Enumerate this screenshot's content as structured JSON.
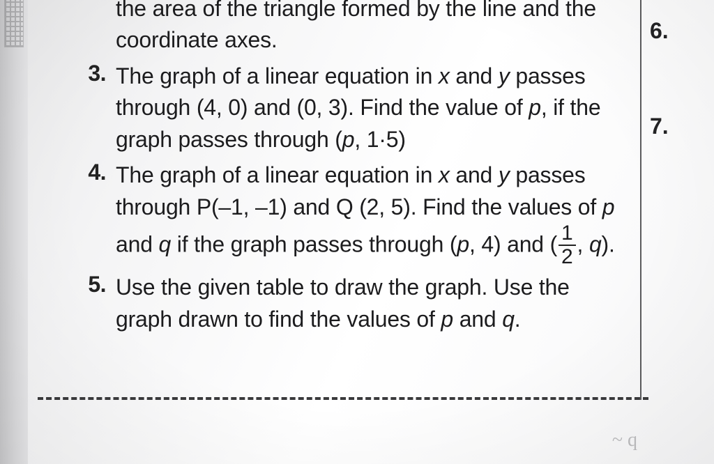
{
  "colors": {
    "text": "#1c1c1e",
    "rule": "#5b5b5d",
    "dash": "#3a3a3c",
    "spine_light": "#e6e6e8",
    "spine_dark": "#c7c7c9"
  },
  "typography": {
    "family": "Arial",
    "body_size_pt": 24,
    "number_weight": 700
  },
  "left_items": [
    {
      "number": "",
      "html": "the area of the triangle formed by the line and the coordinate axes."
    },
    {
      "number": "3.",
      "html": "The graph of a linear equation in <span class='var'>x</span> and <span class='var'>y</span> passes through (4, 0) and (0, 3). Find the value of <span class='var'>p</span>, if the graph passes through (<span class='var'>p</span>, 1·5)"
    },
    {
      "number": "4.",
      "html": "The graph of a linear equation in <span class='var'>x</span> and <span class='var'>y</span> passes through P(–1, –1) and Q (2, 5). Find the values of <span class='var'>p</span> and <span class='var'>q</span> if the graph passes through (<span class='var'>p</span>, 4) and (<span class='frac'><span class='fn'>1</span><span class='fd'>2</span></span>, <span class='var'>q</span>)."
    },
    {
      "number": "5.",
      "html": "Use the given table to draw the graph. Use the graph drawn to find the values of <span class='var'>p</span> and <span class='var'>q</span>."
    }
  ],
  "right_items": [
    {
      "number": "6."
    },
    {
      "number": "7."
    }
  ],
  "scrawl": "~ q"
}
